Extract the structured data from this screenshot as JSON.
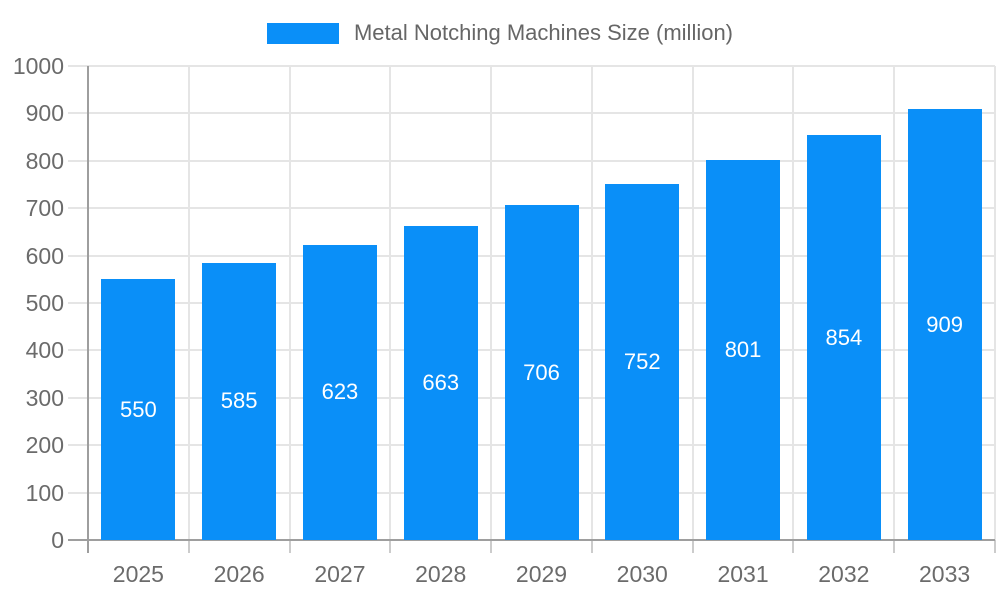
{
  "legend": {
    "label": "Metal Notching Machines Size (million)"
  },
  "chart_data": {
    "type": "bar",
    "title": "Metal Notching Machines Size (million)",
    "series_name": "Metal Notching Machines Size (million)",
    "categories": [
      "2025",
      "2026",
      "2027",
      "2028",
      "2029",
      "2030",
      "2031",
      "2032",
      "2033"
    ],
    "values": [
      550,
      585,
      623,
      663,
      706,
      752,
      801,
      854,
      909
    ],
    "value_labels": [
      "550",
      "585",
      "623",
      "663",
      "706",
      "752",
      "801",
      "854",
      "909"
    ],
    "xlabel": "",
    "ylabel": "",
    "ylim": [
      0,
      1000
    ],
    "ytick_step": 100,
    "ytick_labels": [
      "0",
      "100",
      "200",
      "300",
      "400",
      "500",
      "600",
      "700",
      "800",
      "900",
      "1000"
    ],
    "grid": true,
    "legend_position": "top-center",
    "colors": {
      "bar": "#0a8ff8",
      "grid": "#e5e5e5",
      "axis": "#9e9e9e",
      "tick_mark": "#cccccc",
      "tick_text": "#6b6b6b",
      "value_label": "#ffffff",
      "legend_text": "#666666",
      "background": "#ffffff"
    }
  }
}
